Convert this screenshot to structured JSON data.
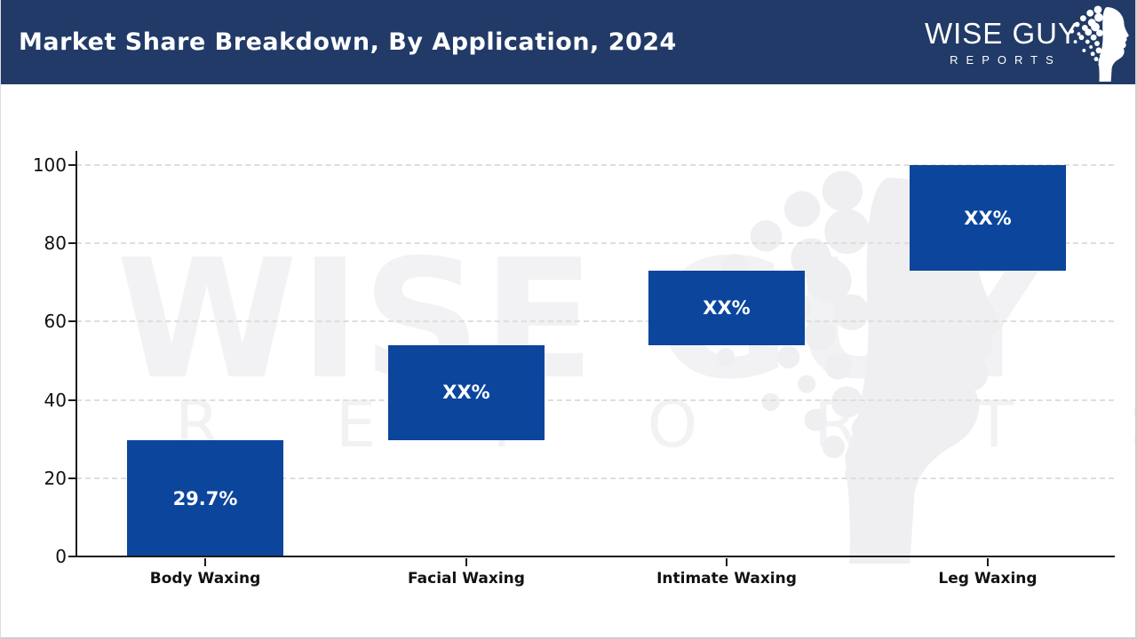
{
  "header": {
    "title": "Market Share Breakdown, By Application, 2024",
    "logo": {
      "line1": "WISE GUY",
      "line2": "REPORTS",
      "icon": "wiseguy-head-icon"
    }
  },
  "watermark": {
    "line1": "WISE GUY",
    "line2": "R E P O R T S",
    "icon": "wiseguy-head-watermark-icon"
  },
  "colors": {
    "header_bg": "#213a67",
    "bar": "#0c459c",
    "grid": "#dedede",
    "axis": "#1a1a1a",
    "bar_label": "#ffffff",
    "watermark": "#f2f2f4"
  },
  "chart_data": {
    "type": "bar",
    "subtype": "waterfall",
    "title": "Market Share Breakdown, By Application, 2024",
    "xlabel": "",
    "ylabel": "",
    "categories": [
      "Body Waxing",
      "Facial Waxing",
      "Intimate Waxing",
      "Leg Waxing"
    ],
    "series": [
      {
        "name": "Market Share",
        "segments": [
          {
            "start": 0,
            "end": 29.7,
            "label": "29.7%"
          },
          {
            "start": 29.7,
            "end": 54,
            "label": "XX%"
          },
          {
            "start": 54,
            "end": 73,
            "label": "XX%"
          },
          {
            "start": 73,
            "end": 100,
            "label": "XX%"
          }
        ]
      }
    ],
    "ylim": [
      0,
      100
    ],
    "yticks": [
      "0",
      "20",
      "40",
      "60",
      "80",
      "100"
    ],
    "grid": "horizontal-dashed",
    "legend": "none"
  }
}
